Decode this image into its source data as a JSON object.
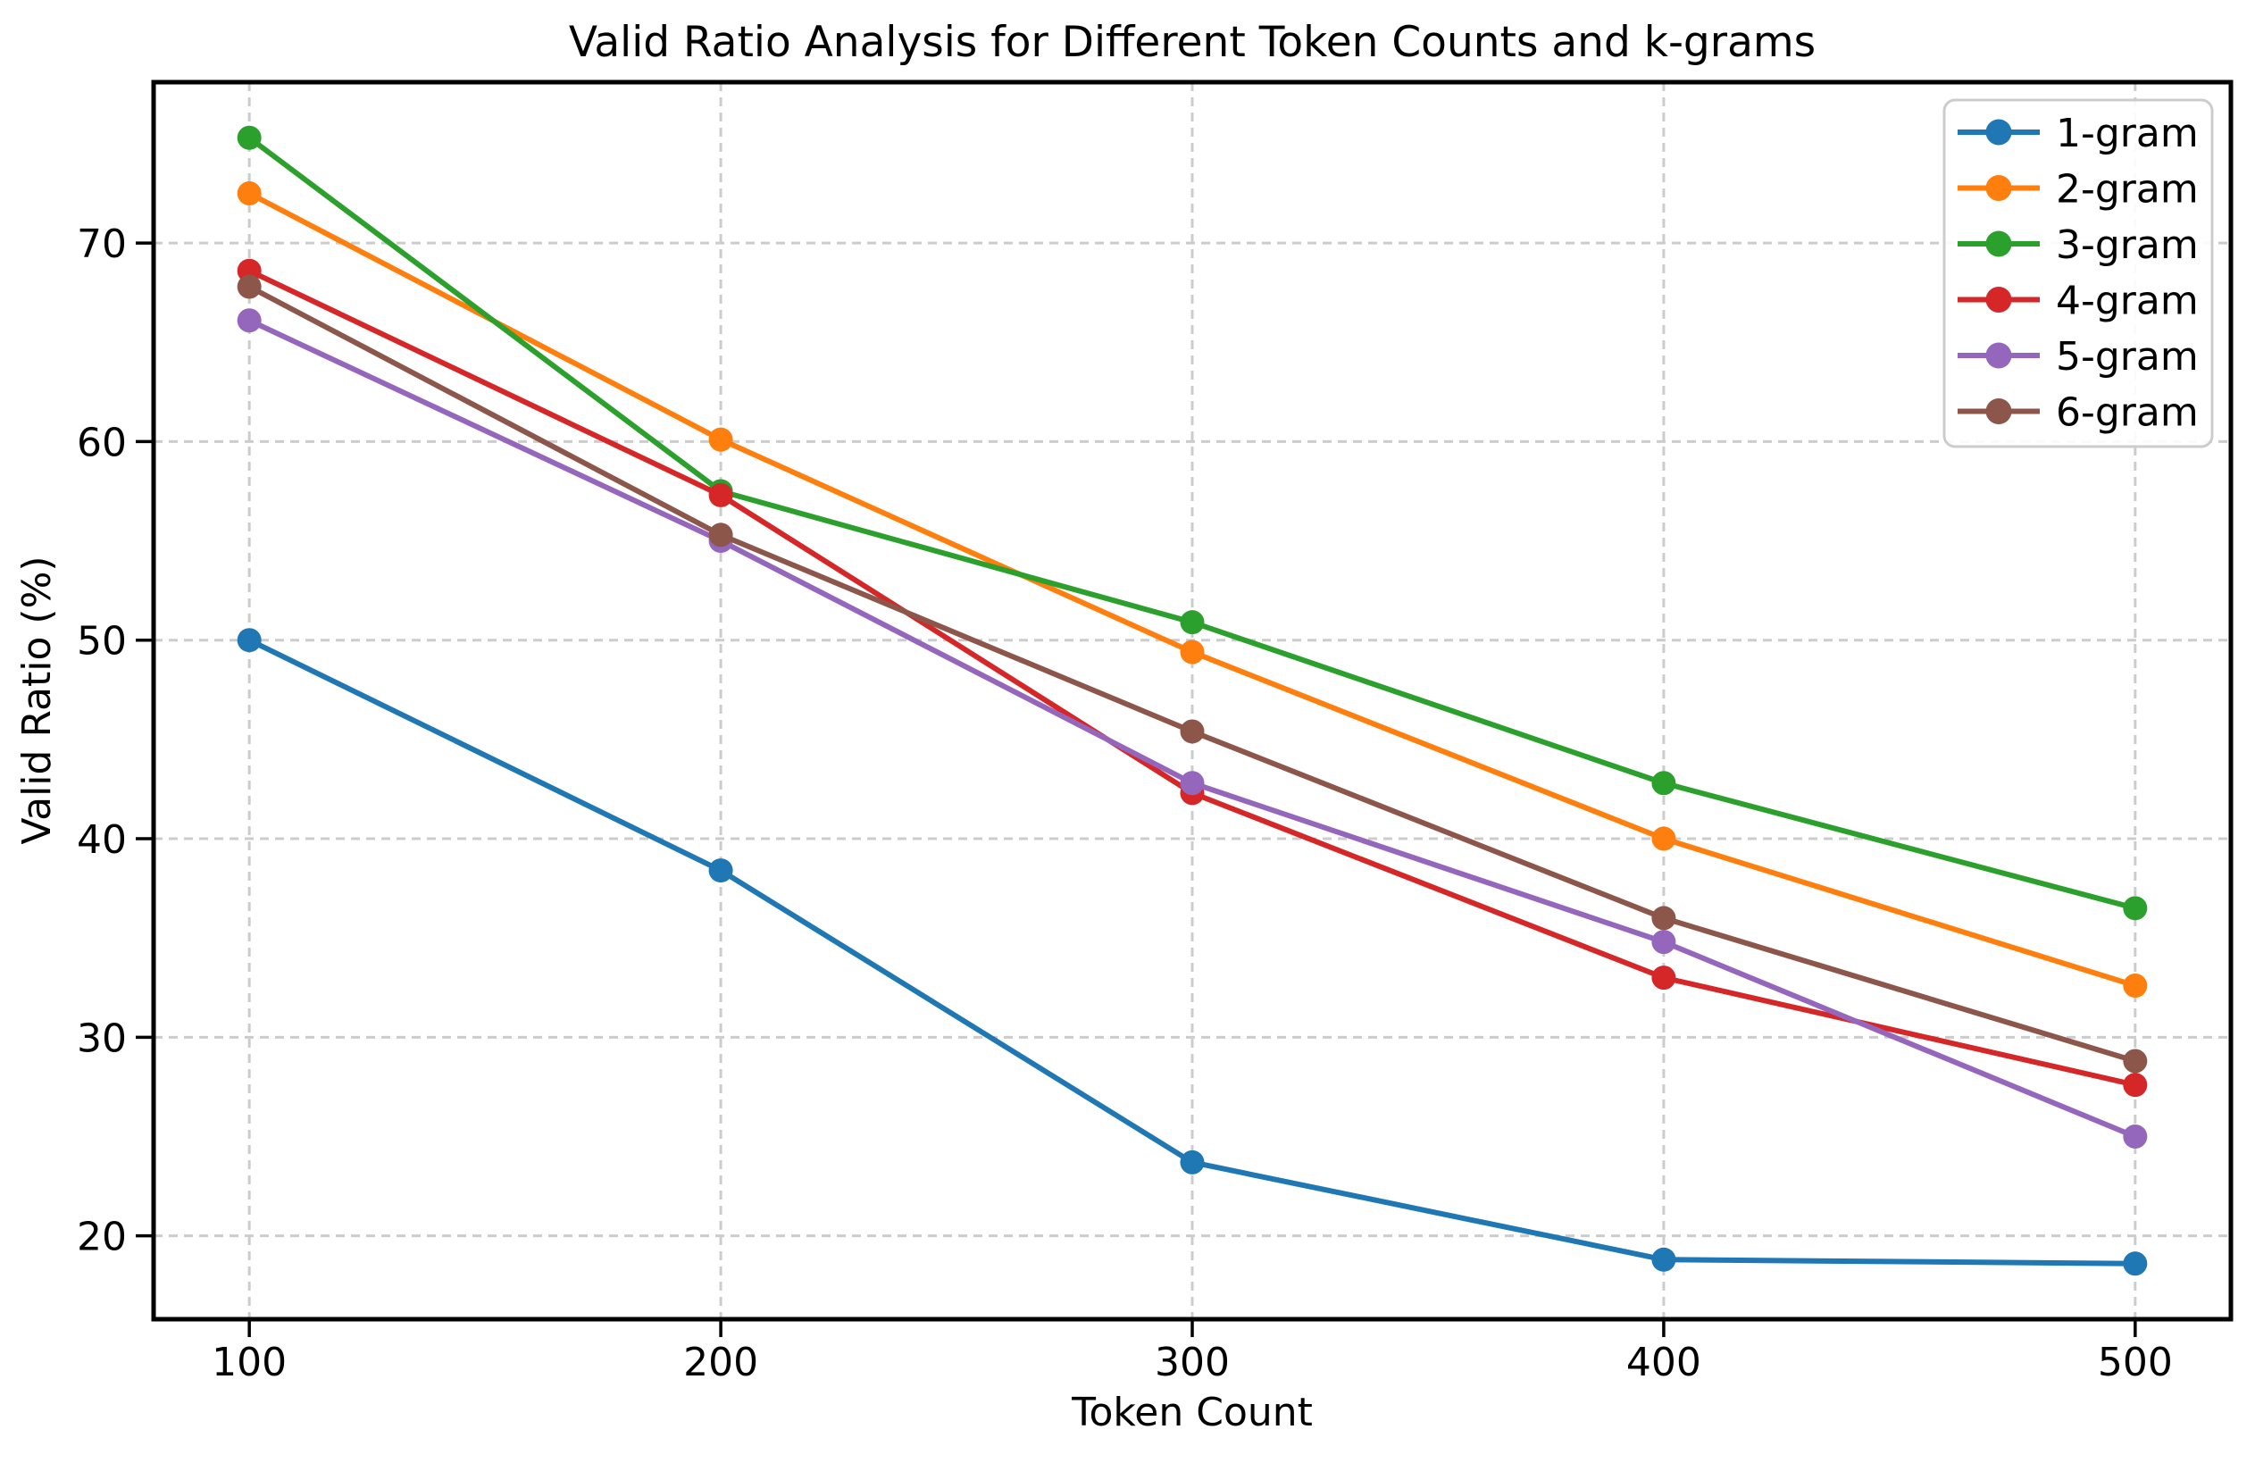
{
  "chart_data": {
    "type": "line",
    "title": "Valid Ratio Analysis for Different Token Counts and k-grams",
    "xlabel": "Token Count",
    "ylabel": "Valid Ratio (%)",
    "x": [
      100,
      200,
      300,
      400,
      500
    ],
    "xticks": [
      100,
      200,
      300,
      400,
      500
    ],
    "yticks": [
      20,
      30,
      40,
      50,
      60,
      70
    ],
    "xlim": [
      79.7,
      520.3
    ],
    "ylim": [
      15.8,
      78.1
    ],
    "grid": {
      "visible": true,
      "style": "dashed",
      "color": "#cccccc"
    },
    "legend": {
      "position": "upper right",
      "border_color": "#cccccc",
      "background": "#ffffff"
    },
    "series": [
      {
        "name": "1-gram",
        "color": "#1f77b4",
        "values": [
          50.0,
          38.4,
          23.7,
          18.8,
          18.6
        ]
      },
      {
        "name": "2-gram",
        "color": "#ff7f0e",
        "values": [
          72.5,
          60.1,
          49.4,
          40.0,
          32.6
        ]
      },
      {
        "name": "3-gram",
        "color": "#2ca02c",
        "values": [
          75.3,
          57.5,
          50.9,
          42.8,
          36.5
        ]
      },
      {
        "name": "4-gram",
        "color": "#d62728",
        "values": [
          68.6,
          57.3,
          42.3,
          33.0,
          27.6
        ]
      },
      {
        "name": "5-gram",
        "color": "#9467bd",
        "values": [
          66.1,
          55.0,
          42.8,
          34.8,
          25.0
        ]
      },
      {
        "name": "6-gram",
        "color": "#8c564b",
        "values": [
          67.8,
          55.3,
          45.4,
          36.0,
          28.8
        ]
      }
    ],
    "axis_color": "#000000",
    "marker": "circle"
  }
}
